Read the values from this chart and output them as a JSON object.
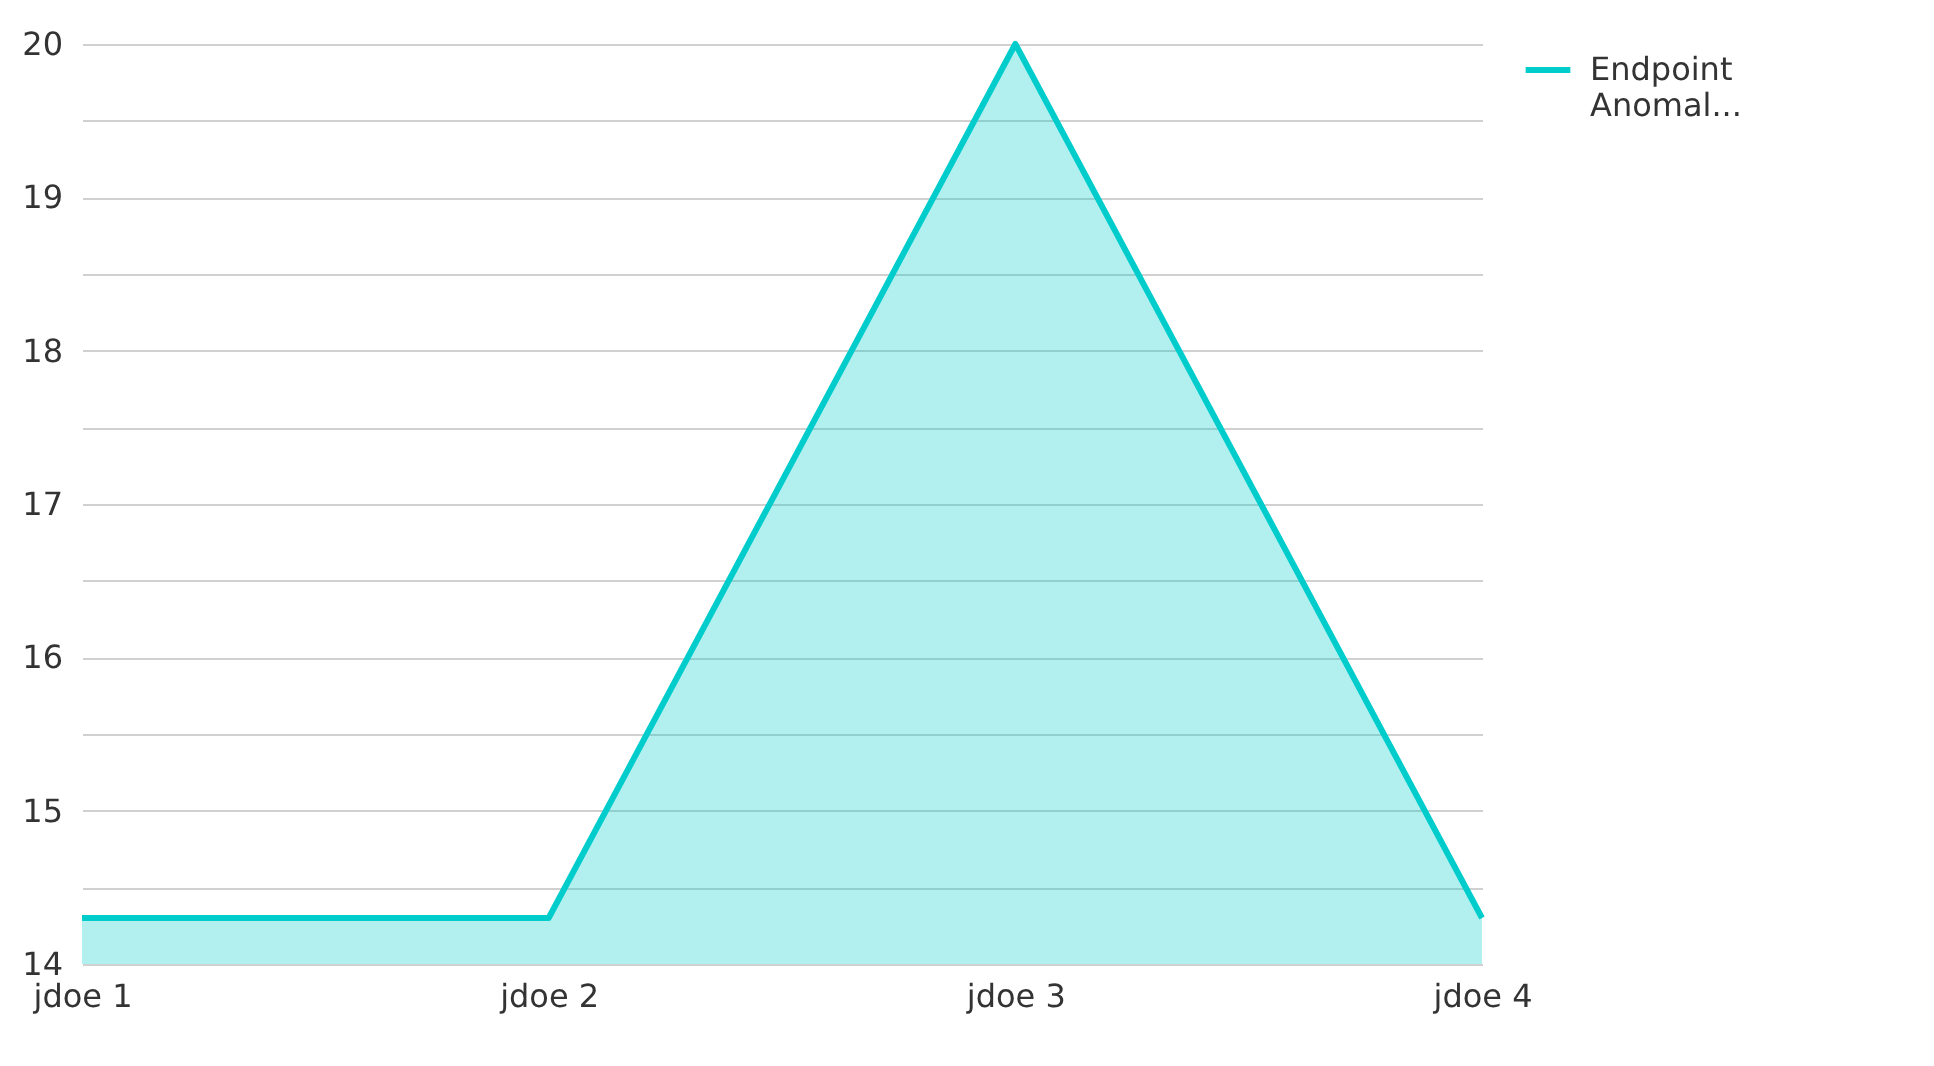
{
  "chart_data": {
    "type": "area",
    "categories": [
      "jdoe 1",
      "jdoe 2",
      "jdoe 3",
      "jdoe 4"
    ],
    "series": [
      {
        "name": "Endpoint Anomal...",
        "color": "#00cccc",
        "values": [
          14.3,
          14.3,
          20,
          14.3
        ]
      }
    ],
    "ylim": [
      14,
      20
    ],
    "yticks": [
      14,
      {
        "value": 14.5,
        "label": null
      },
      15,
      {
        "value": 15.5,
        "label": null
      },
      16,
      {
        "value": 16.5,
        "label": null
      },
      17,
      {
        "value": 17.5,
        "label": null
      },
      18,
      {
        "value": 18.5,
        "label": null
      },
      19,
      {
        "value": 19.5,
        "label": null
      },
      20
    ],
    "grid": "y",
    "legend": "top right"
  }
}
